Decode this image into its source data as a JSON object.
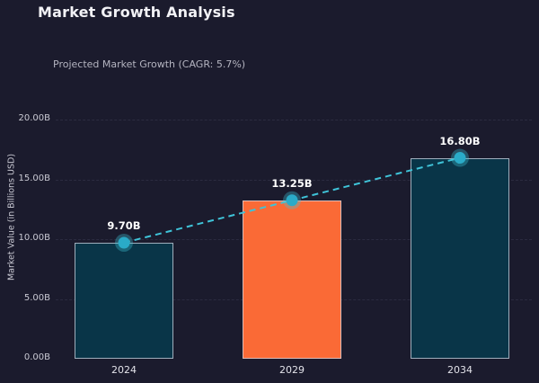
{
  "title": "Market Growth Analysis",
  "subtitle": "Projected Market Growth (CAGR: 5.7%)",
  "colors": {
    "background": "#1b1b2d",
    "bar_teal": "#093548",
    "bar_orange": "#fa6a36",
    "bar_border": "rgba(209,215,227,0.75)",
    "trend_line": "#3fc3d8",
    "trend_dot": "#2aabc8",
    "trend_dot_glow": "rgba(63,195,216,0.35)",
    "grid": "#2b2b40",
    "text_primary": "#f2f2f6",
    "text_muted": "#b4b4c0"
  },
  "chart_data": {
    "type": "bar",
    "title": "Market Growth Analysis",
    "subtitle": "Projected Market Growth (CAGR: 5.7%)",
    "categories": [
      "2024",
      "2029",
      "2034"
    ],
    "values": [
      9.7,
      13.25,
      16.8
    ],
    "value_labels": [
      "9.70B",
      "13.25B",
      "16.80B"
    ],
    "bar_colors": [
      "#093548",
      "#fa6a36",
      "#093548"
    ],
    "xlabel": "",
    "ylabel": "Market Value (in Billions USD)",
    "ylim": [
      0,
      20
    ],
    "ytick_values": [
      0,
      5,
      10,
      15,
      20
    ],
    "ytick_labels": [
      "0.00B",
      "5.00B",
      "10.00B",
      "15.00B",
      "20.00B"
    ],
    "grid": "horizontal-dashed",
    "legend": "none",
    "overlay": {
      "type": "line",
      "style": "dashed",
      "markers": "circle",
      "values": [
        9.7,
        13.25,
        16.8
      ]
    }
  }
}
